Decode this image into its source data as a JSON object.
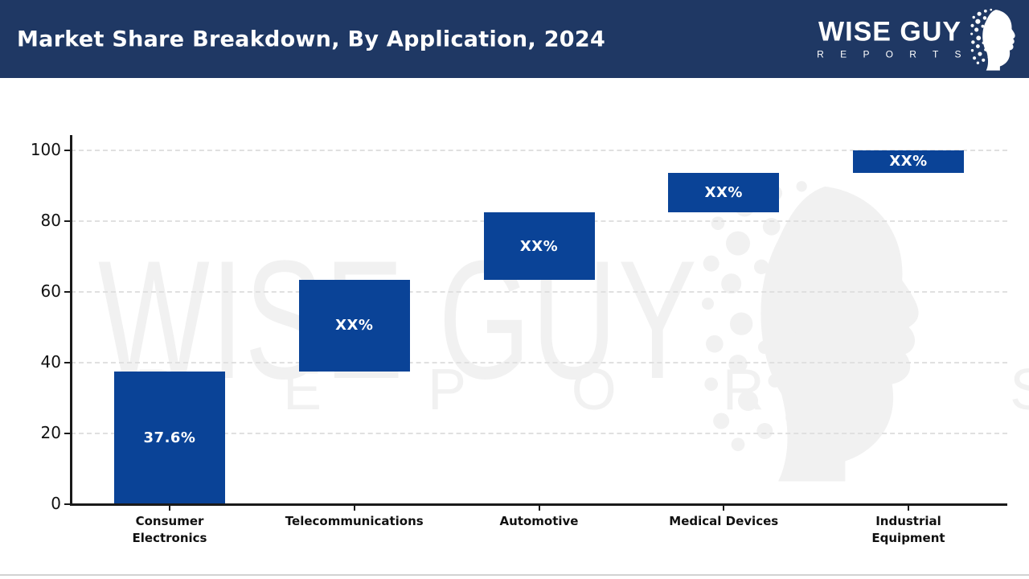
{
  "header": {
    "title": "Market Share Breakdown, By Application, 2024",
    "background_color": "#1f3864",
    "logo": {
      "name": "Wise Guy Reports logo",
      "line1": "WISE GUY",
      "line2": "R E P O R T S",
      "icon": "wise-guy-head-icon"
    }
  },
  "watermark": {
    "line1": "WISE GUY",
    "line2": "R E P O R T S",
    "icon": "wise-guy-head-icon"
  },
  "chart_data": {
    "type": "bar",
    "subtype": "floating-waterfall",
    "title": "Market Share Breakdown, By Application, 2024",
    "categories": [
      "Consumer\nElectronics",
      "Telecommunications",
      "Automotive",
      "Medical Devices",
      "Industrial\nEquipment"
    ],
    "segments": [
      {
        "category": "Consumer Electronics",
        "start": 0,
        "end": 37.6,
        "label": "37.6%"
      },
      {
        "category": "Telecommunications",
        "start": 37.6,
        "end": 63.4,
        "label": "XX%"
      },
      {
        "category": "Automotive",
        "start": 63.4,
        "end": 82.4,
        "label": "XX%"
      },
      {
        "category": "Medical Devices",
        "start": 82.4,
        "end": 93.7,
        "label": "XX%"
      },
      {
        "category": "Industrial Equipment",
        "start": 93.7,
        "end": 100,
        "label": "XX%"
      }
    ],
    "yticks": [
      0,
      20,
      40,
      60,
      80,
      100
    ],
    "ylim": [
      0,
      104
    ],
    "xlabel": "",
    "ylabel": "",
    "legend": "none",
    "grid": "horizontal-dashed",
    "colors": {
      "bar": "#0a4397",
      "gridline": "#e0e0e0",
      "axis": "#1a1a1a",
      "bar_label": "#ffffff",
      "header_background": "#1f3864",
      "watermark": "#f1f1f1"
    }
  }
}
